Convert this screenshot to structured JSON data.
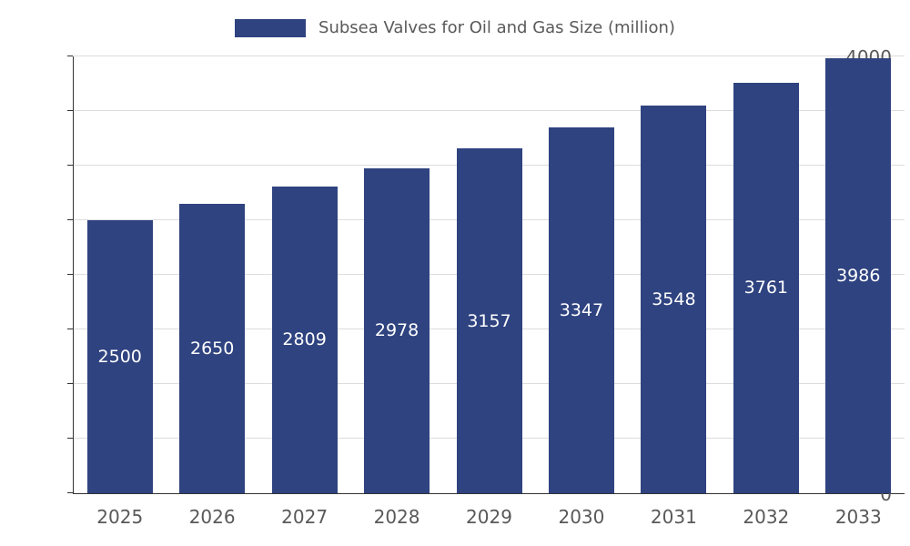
{
  "chart_data": {
    "type": "bar",
    "title": "Subsea Valves for Oil and Gas Size (million)",
    "categories": [
      "2025",
      "2026",
      "2027",
      "2028",
      "2029",
      "2030",
      "2031",
      "2032",
      "2033"
    ],
    "values": [
      2500,
      2650,
      2809,
      2978,
      3157,
      3347,
      3548,
      3761,
      3986
    ],
    "xlabel": "",
    "ylabel": "",
    "ylim": [
      0,
      4000
    ],
    "ytick_step": 500,
    "grid": true,
    "legend_position": "top",
    "bar_color": "#2f4380",
    "bar_label_color": "#ffffff",
    "axis_text_color": "#595959"
  }
}
